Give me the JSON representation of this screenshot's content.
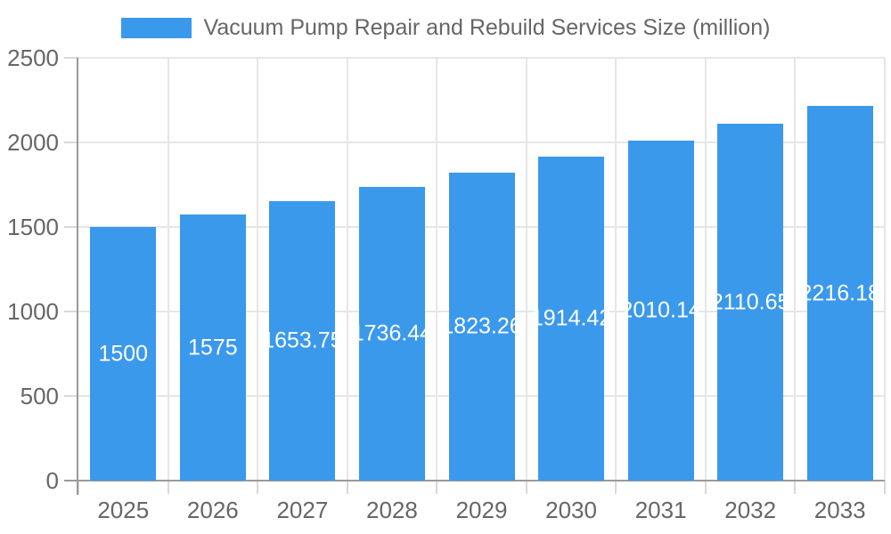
{
  "chart_data": {
    "type": "bar",
    "title": "Vacuum Pump Repair and Rebuild Services Size (million)",
    "legend_position": "top",
    "categories": [
      "2025",
      "2026",
      "2027",
      "2028",
      "2029",
      "2030",
      "2031",
      "2032",
      "2033"
    ],
    "values": [
      1500,
      1575,
      1653.75,
      1736.44,
      1823.26,
      1914.42,
      2010.14,
      2110.65,
      2216.18
    ],
    "value_labels": [
      "1500",
      "1575",
      "1653.75",
      "1736.44",
      "1823.26",
      "1914.42",
      "2010.14",
      "2110.65",
      "2216.18"
    ],
    "xlabel": "",
    "ylabel": "",
    "ylim": [
      0,
      2500
    ],
    "yticks": [
      0,
      500,
      1000,
      1500,
      2000,
      2500
    ],
    "grid": true,
    "colors": {
      "bar": "#3B99EC",
      "bar_label": "#FFFFFF",
      "axis_label": "#666666",
      "grid_line": "#E6E6E6",
      "tick_line": "#D8D8D8",
      "axis_line": "#9A9A9A",
      "background": "#FFFFFF"
    }
  }
}
